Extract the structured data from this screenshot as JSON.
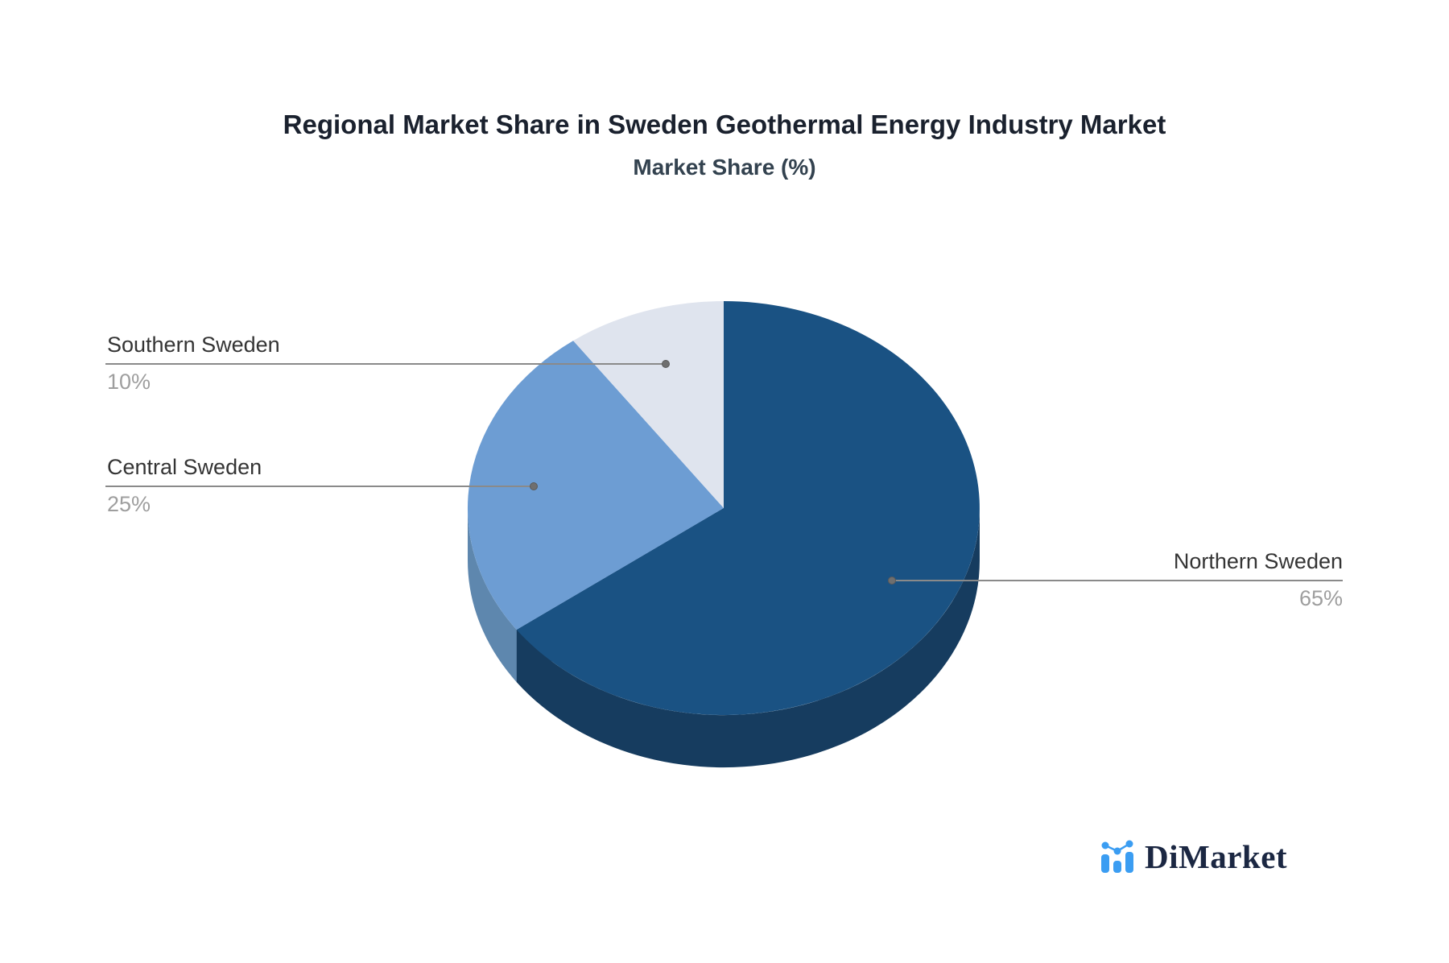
{
  "page": {
    "title": "Regional Market Share in Sweden Geothermal Energy Industry Market",
    "subtitle": "Market Share (%)"
  },
  "chart_data": {
    "type": "pie",
    "title": "Regional Market Share in Sweden Geothermal Energy Industry Market",
    "subtitle": "Market Share (%)",
    "unit": "%",
    "style": "3d",
    "start_angle": 0,
    "direction": "clockwise",
    "legend_position": "none",
    "labels_as_callouts": true,
    "slices": [
      {
        "label": "Northern Sweden",
        "value": 65,
        "color": "#1a5283",
        "side_color": "#163c5f"
      },
      {
        "label": "Central Sweden",
        "value": 25,
        "color": "#6d9dd3",
        "side_color": "#5e87ae"
      },
      {
        "label": "Southern Sweden",
        "value": 10,
        "color": "#dfe4ee",
        "side_color": "#c2cdde"
      }
    ]
  },
  "callouts": {
    "southern": {
      "label": "Southern Sweden",
      "value": "10%"
    },
    "central": {
      "label": "Central Sweden",
      "value": "25%"
    },
    "northern": {
      "label": "Northern Sweden",
      "value": "65%"
    }
  },
  "branding": {
    "logo_text": "DiMarket",
    "logo_text_color": "#1b2742",
    "icon_color": "#3b9df2"
  }
}
